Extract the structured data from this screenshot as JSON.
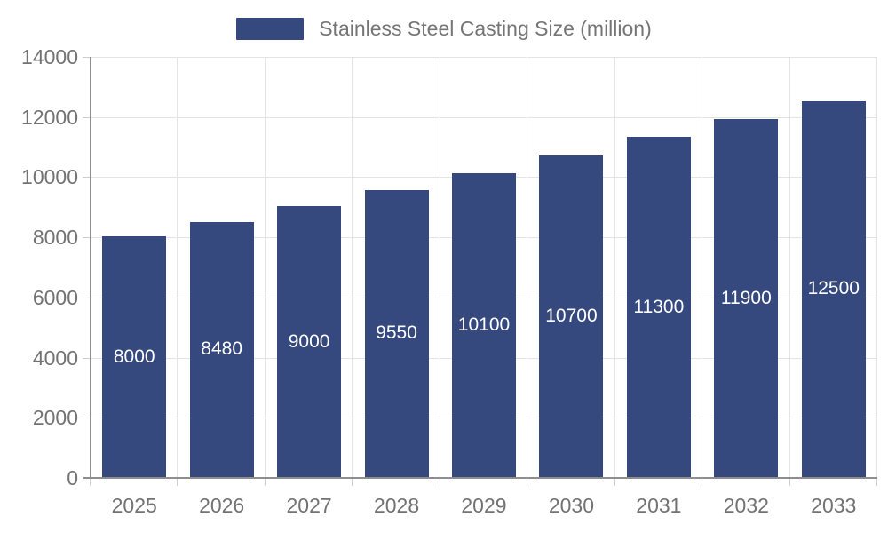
{
  "chart_data": {
    "type": "bar",
    "title": "",
    "legend_label": "Stainless Steel Casting Size (million)",
    "legend_position": "top",
    "categories": [
      "2025",
      "2026",
      "2027",
      "2028",
      "2029",
      "2030",
      "2031",
      "2032",
      "2033"
    ],
    "values": [
      8000,
      8480,
      9000,
      9550,
      10100,
      10700,
      11300,
      11900,
      12500
    ],
    "series": [
      {
        "name": "Stainless Steel Casting Size (million)",
        "values": [
          8000,
          8480,
          9000,
          9550,
          10100,
          10700,
          11300,
          11900,
          12500
        ]
      }
    ],
    "xlabel": "",
    "ylabel": "",
    "ylim": [
      0,
      14000
    ],
    "yticks": [
      0,
      2000,
      4000,
      6000,
      8000,
      10000,
      12000,
      14000
    ],
    "grid": true,
    "value_labels_shown": true,
    "value_label_position": "inside-center",
    "colors": {
      "bar": "#36497f",
      "value_label": "#ffffff",
      "axis_text": "#737373",
      "legend_text": "#757575",
      "gridline": "#e4e4e4",
      "axis_line": "#8e8e8e",
      "background": "#ffffff"
    }
  }
}
